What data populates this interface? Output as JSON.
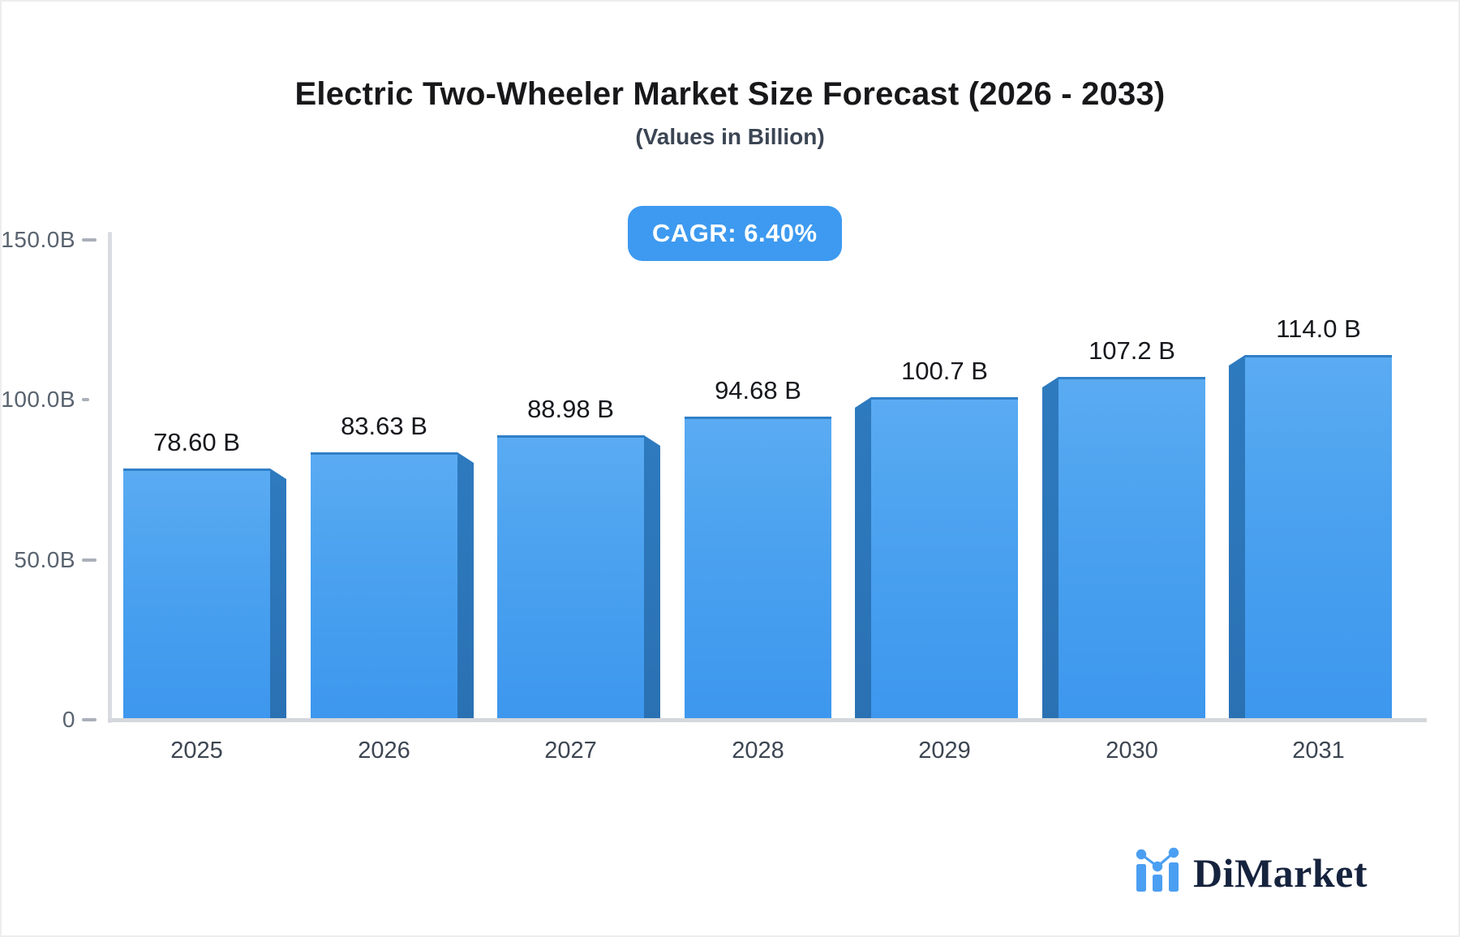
{
  "header": {
    "title": "Electric Two-Wheeler Market Size Forecast (2026 - 2033)",
    "subtitle": "(Values in Billion)"
  },
  "badge": {
    "label": "CAGR: 6.40%"
  },
  "chart_data": {
    "type": "bar",
    "title": "Electric Two-Wheeler Market Size Forecast (2026 - 2033)",
    "subtitle": "(Values in Billion)",
    "cagr_label": "CAGR: 6.40%",
    "categories": [
      "2025",
      "2026",
      "2027",
      "2028",
      "2029",
      "2030",
      "2031"
    ],
    "values": [
      78.6,
      83.63,
      88.98,
      94.68,
      100.7,
      107.2,
      114.0
    ],
    "value_labels": [
      "78.60 B",
      "83.63 B",
      "88.98 B",
      "94.68 B",
      "100.7 B",
      "107.2 B",
      "114.0 B"
    ],
    "ylim": [
      0,
      150
    ],
    "yticks": [
      {
        "label": "150.0B",
        "value": 150
      },
      {
        "label": "100.0B",
        "value": 100
      },
      {
        "label": "50.0B",
        "value": 50
      },
      {
        "label": "0",
        "value": 0
      }
    ],
    "grid": false,
    "legend": false,
    "style": "3d-perspective-bars",
    "bar_color": "#3f98ee",
    "bar_color_top": "#58a9f1",
    "bar_side_color": "#2b74b9"
  },
  "logo": {
    "text": "DiMarket"
  },
  "colors": {
    "accent_blue": "#3d9af0",
    "logo_navy": "#16233e",
    "axis_gray": "#d7dade",
    "tick_text": "#59636f"
  }
}
